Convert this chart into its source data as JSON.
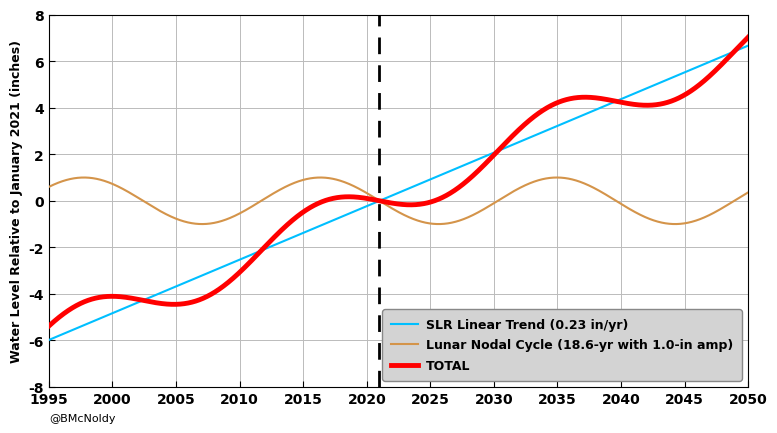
{
  "ylabel": "Water Level Relative to January 2021 (inches)",
  "xlim": [
    1995,
    2050
  ],
  "ylim": [
    -8,
    8
  ],
  "xticks": [
    1995,
    2000,
    2005,
    2010,
    2015,
    2020,
    2025,
    2030,
    2035,
    2040,
    2045,
    2050
  ],
  "yticks": [
    -8,
    -6,
    -4,
    -2,
    0,
    2,
    4,
    6,
    8
  ],
  "ref_year": 2021,
  "slr_rate": 0.23,
  "nodal_period": 18.6,
  "nodal_amplitude": 1.0,
  "nodal_phase": 3.14159265358979,
  "dashed_line_x": 2021,
  "slr_color": "#00BFFF",
  "nodal_color": "#D4944A",
  "total_color": "#FF0000",
  "total_linewidth": 3.5,
  "slr_linewidth": 1.5,
  "nodal_linewidth": 1.5,
  "dashed_linewidth": 2.0,
  "grid_color": "#BBBBBB",
  "background_color": "#FFFFFF",
  "legend_labels": [
    "SLR Linear Trend (0.23 in/yr)",
    "Lunar Nodal Cycle (18.6-yr with 1.0-in amp)",
    "TOTAL"
  ],
  "legend_facecolor": "#D3D3D3",
  "watermark": "@BMcNoldy",
  "watermark_fontsize": 8,
  "tick_fontsize": 10,
  "ylabel_fontsize": 9,
  "legend_fontsize": 9
}
